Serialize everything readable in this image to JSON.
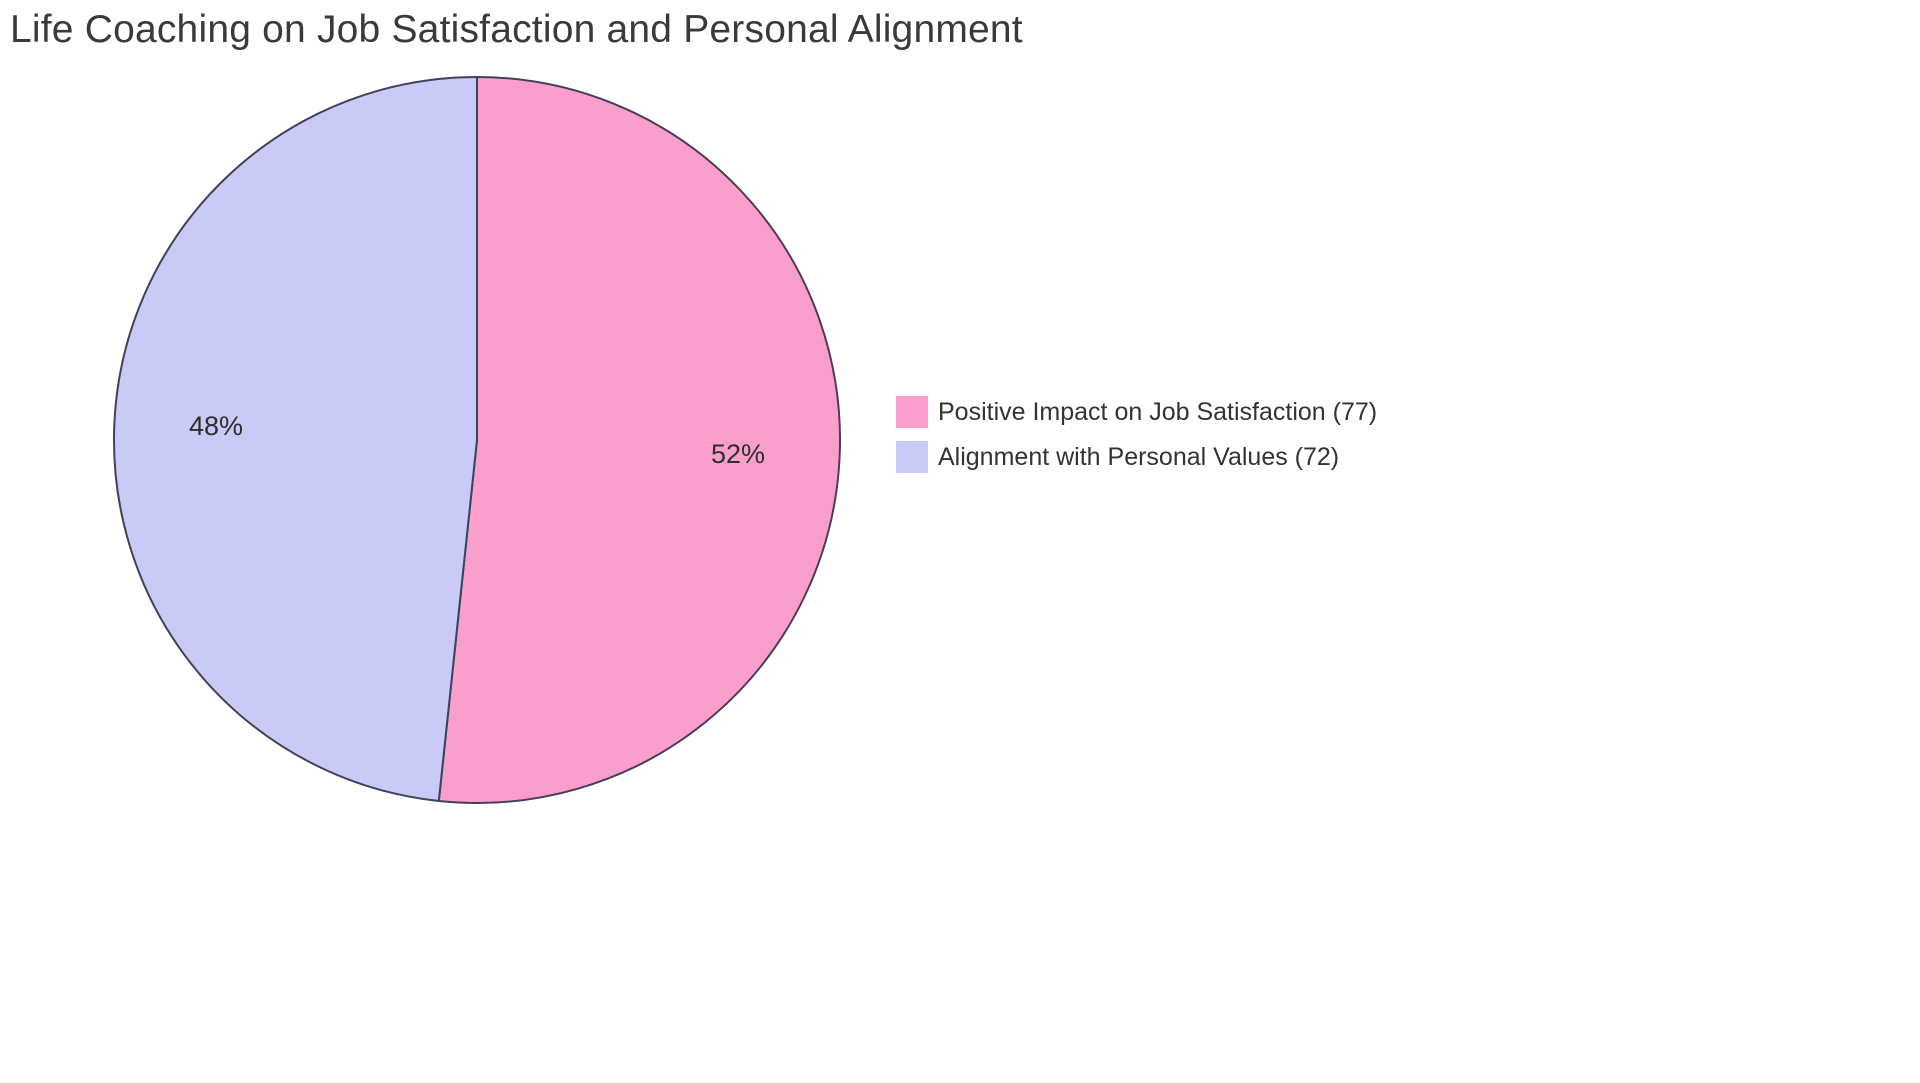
{
  "title": "Life Coaching on Job Satisfaction and Personal Alignment",
  "chart_data": {
    "type": "pie",
    "title": "Life Coaching on Job Satisfaction and Personal Alignment",
    "start_angle_deg": 0,
    "direction": "clockwise",
    "stroke_color": "#42405c",
    "stroke_width": 2,
    "legend_position": "right",
    "slices": [
      {
        "label": "Positive Impact on Job Satisfaction (77)",
        "value": 77,
        "pct_label": "52%",
        "color": "#fa9fcc"
      },
      {
        "label": "Alignment with Personal Values (72)",
        "value": 72,
        "pct_label": "48%",
        "color": "#c9caf5"
      }
    ]
  }
}
